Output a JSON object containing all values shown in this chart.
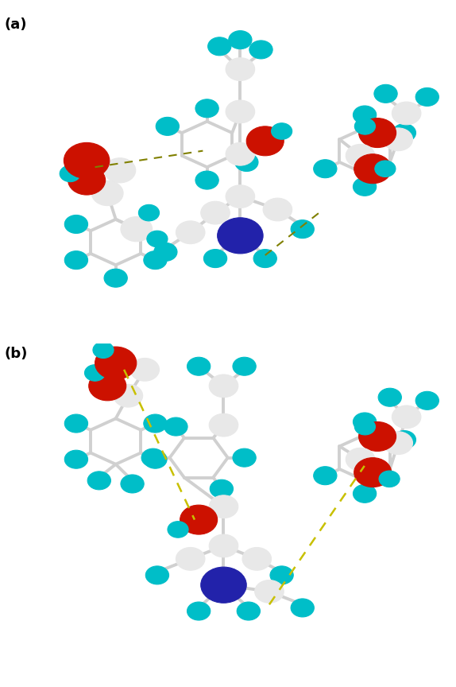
{
  "panel_a_label": "(a)",
  "panel_b_label": "(b)",
  "background_color": "#000000",
  "outer_bg": "#ffffff",
  "label_fontsize": 13,
  "label_fontweight": "bold",
  "fig_width": 5.74,
  "fig_height": 8.64,
  "atom_colors": {
    "cyan": "#00BEC8",
    "white": "#E8E8E8",
    "red": "#CC1100",
    "blue_purple": "#2222AA",
    "light_gray": "#CCCCCC"
  },
  "bond_color": "#D0D0D0",
  "hbond_color_a": "#808000",
  "hbond_color_b": "#C8C000"
}
